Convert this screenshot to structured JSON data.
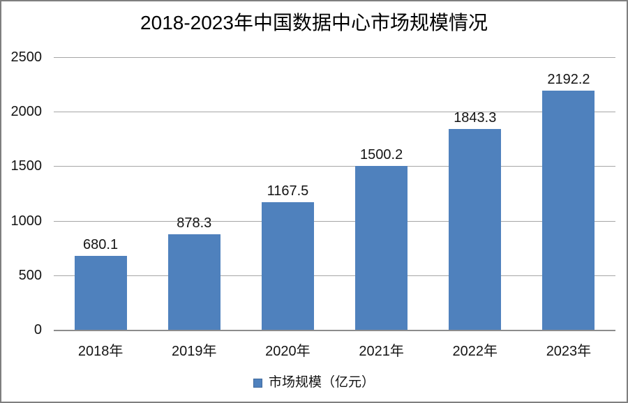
{
  "frame": {
    "border_color": "#7f7f7f",
    "background_color": "#ffffff"
  },
  "chart_data": {
    "type": "bar",
    "title": "2018-2023年中国数据中心市场规模情况",
    "categories": [
      "2018年",
      "2019年",
      "2020年",
      "2021年",
      "2022年",
      "2023年"
    ],
    "series": [
      {
        "name": "市场规模（亿元）",
        "values": [
          680.1,
          878.3,
          1167.5,
          1500.2,
          1843.3,
          2192.2
        ]
      }
    ],
    "value_labels": [
      "680.1",
      "878.3",
      "1167.5",
      "1500.2",
      "1843.3",
      "2192.2"
    ],
    "xlabel": "",
    "ylabel": "",
    "ylim": [
      0,
      2500
    ],
    "yticks": [
      0,
      500,
      1000,
      1500,
      2000,
      2500
    ],
    "ytick_labels": [
      "0",
      "500",
      "1000",
      "1500",
      "2000",
      "2500"
    ],
    "grid": true,
    "legend_position": "bottom",
    "bar_color": "#4F81BD",
    "gridline_color": "#a6a6a6",
    "axis_line_color": "#8c8c8c",
    "text_color": "#141414",
    "title_color": "#000000"
  }
}
